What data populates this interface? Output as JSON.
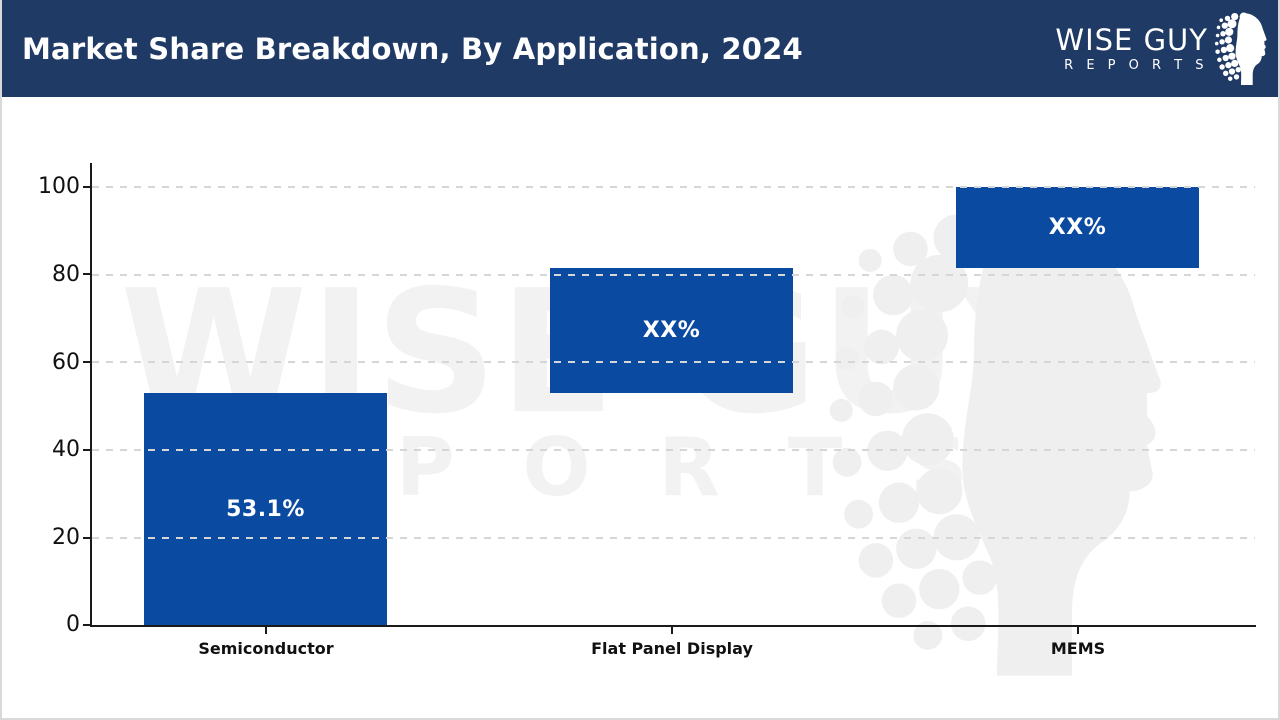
{
  "header": {
    "title": "Market Share Breakdown, By Application, 2024",
    "logo_line1": "WISE GUY",
    "logo_line2": "R E P O R T S"
  },
  "watermark": {
    "line1": "WISE GUY",
    "line2": "R E P O R T S"
  },
  "colors": {
    "header_navy": "#203A66",
    "bar_blue": "#0B4AA1",
    "gridline_gray": "#d6d6d6",
    "watermark_gray": "#f2f2f2"
  },
  "chart_data": {
    "type": "bar",
    "subtype": "floating_cumulative_segments",
    "title": "Market Share Breakdown, By Application, 2024",
    "xlabel": "",
    "ylabel": "",
    "categories": [
      "Semiconductor",
      "Flat Panel Display",
      "MEMS"
    ],
    "segments": [
      {
        "category": "Semiconductor",
        "start": 0,
        "end": 53.1,
        "value": 53.1,
        "label": "53.1%"
      },
      {
        "category": "Flat Panel Display",
        "start": 53.1,
        "end": 81.5,
        "value": 28.4,
        "label": "XX%"
      },
      {
        "category": "MEMS",
        "start": 81.5,
        "end": 100,
        "value": 18.5,
        "label": "XX%"
      }
    ],
    "ytick_labels": [
      "0",
      "20",
      "40",
      "60",
      "80",
      "100"
    ],
    "ylim": [
      0,
      105
    ],
    "grid": "horizontal-dashed",
    "grid_over_bars": true,
    "legend": false,
    "bar_color": "#0B4AA1"
  }
}
